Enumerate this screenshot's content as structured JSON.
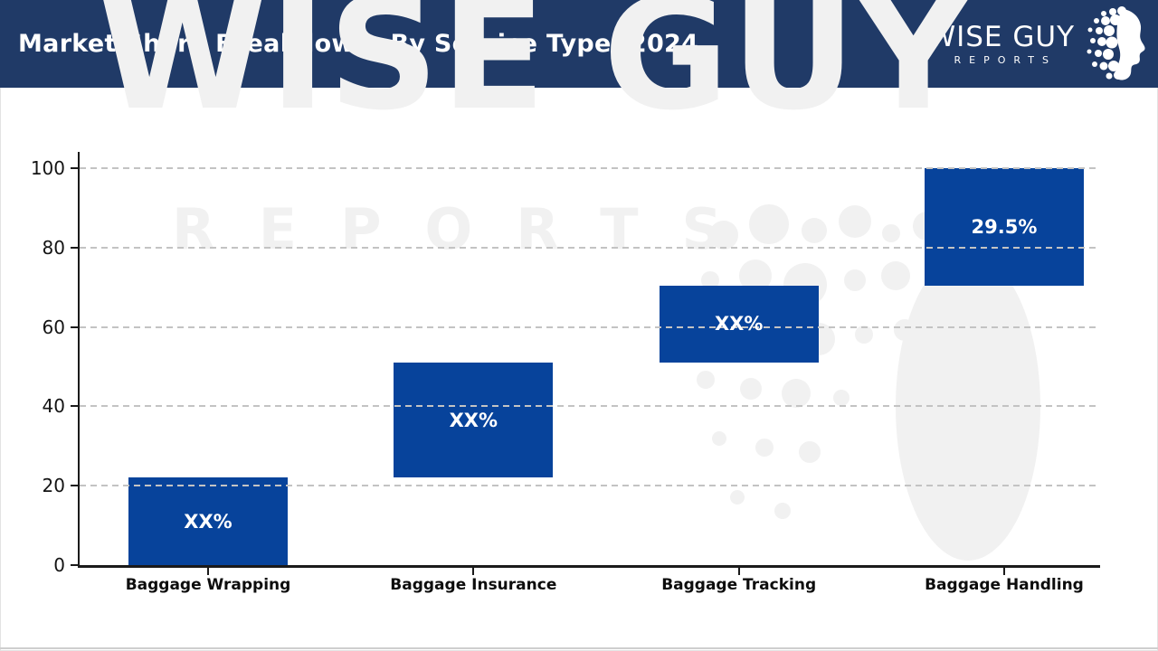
{
  "header": {
    "title": "Market Share Breakdown, By Service Type, 2024",
    "logo": {
      "name": "WISE GUY",
      "sub": "REPORTS"
    }
  },
  "watermark": {
    "line1": "WISE GUY",
    "line2": "REPORTS"
  },
  "colors": {
    "header_bg": "#203a67",
    "bar": "#07439b",
    "axis": "#1a1a1a",
    "grid": "#c3c3c3",
    "bar_value_text": "#ffffff",
    "watermark": "#f1f1f1"
  },
  "chart_data": {
    "type": "bar",
    "subtype": "waterfall",
    "title": "Market Share Breakdown, By Service Type, 2024",
    "categories": [
      "Baggage Wrapping",
      "Baggage Insurance",
      "Baggage Tracking",
      "Baggage Handling"
    ],
    "bars": [
      {
        "category": "Baggage Wrapping",
        "start": 0,
        "end": 22,
        "label": "XX%"
      },
      {
        "category": "Baggage Insurance",
        "start": 22,
        "end": 51,
        "label": "XX%"
      },
      {
        "category": "Baggage Tracking",
        "start": 51,
        "end": 70.5,
        "label": "XX%"
      },
      {
        "category": "Baggage Handling",
        "start": 70.5,
        "end": 100,
        "label": "29.5%"
      }
    ],
    "ylim": [
      0,
      100
    ],
    "yticks": [
      0,
      20,
      40,
      60,
      80,
      100
    ],
    "xlabel": "",
    "ylabel": "",
    "grid": "dashed-horizontal",
    "legend": "none"
  }
}
